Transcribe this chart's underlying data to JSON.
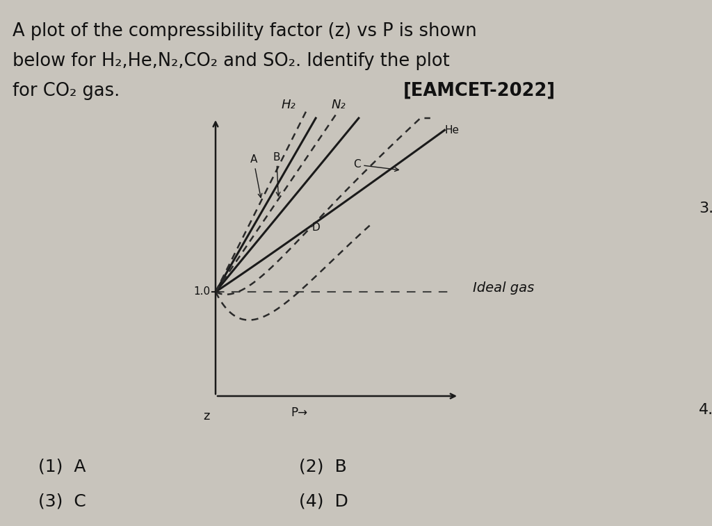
{
  "bg_color": "#c8c4bc",
  "text_color": "#111111",
  "line_color": "#1a1a1a",
  "dash_color": "#2a2a2a",
  "title_line1": "A plot of the compressibility factor (z) vs P is shown",
  "title_line2": "below for H₂,He,N₂,CO₂ and SO₂. Identify the plot",
  "title_line3": "for CO₂ gas.",
  "eamcet": "[EAMCET-2022]",
  "h2_label": "H₂",
  "n2_label": "N₂",
  "he_label": "He",
  "ideal_label": "Ideal gas",
  "z_tick": "1.0",
  "ylabel": "z",
  "xlabel": "P→",
  "opt1": "(1)  A",
  "opt2": "(2)  B",
  "opt3": "(3)  C",
  "opt4": "(4)  D",
  "page_right_num": "3.",
  "page_right_num2": "4."
}
